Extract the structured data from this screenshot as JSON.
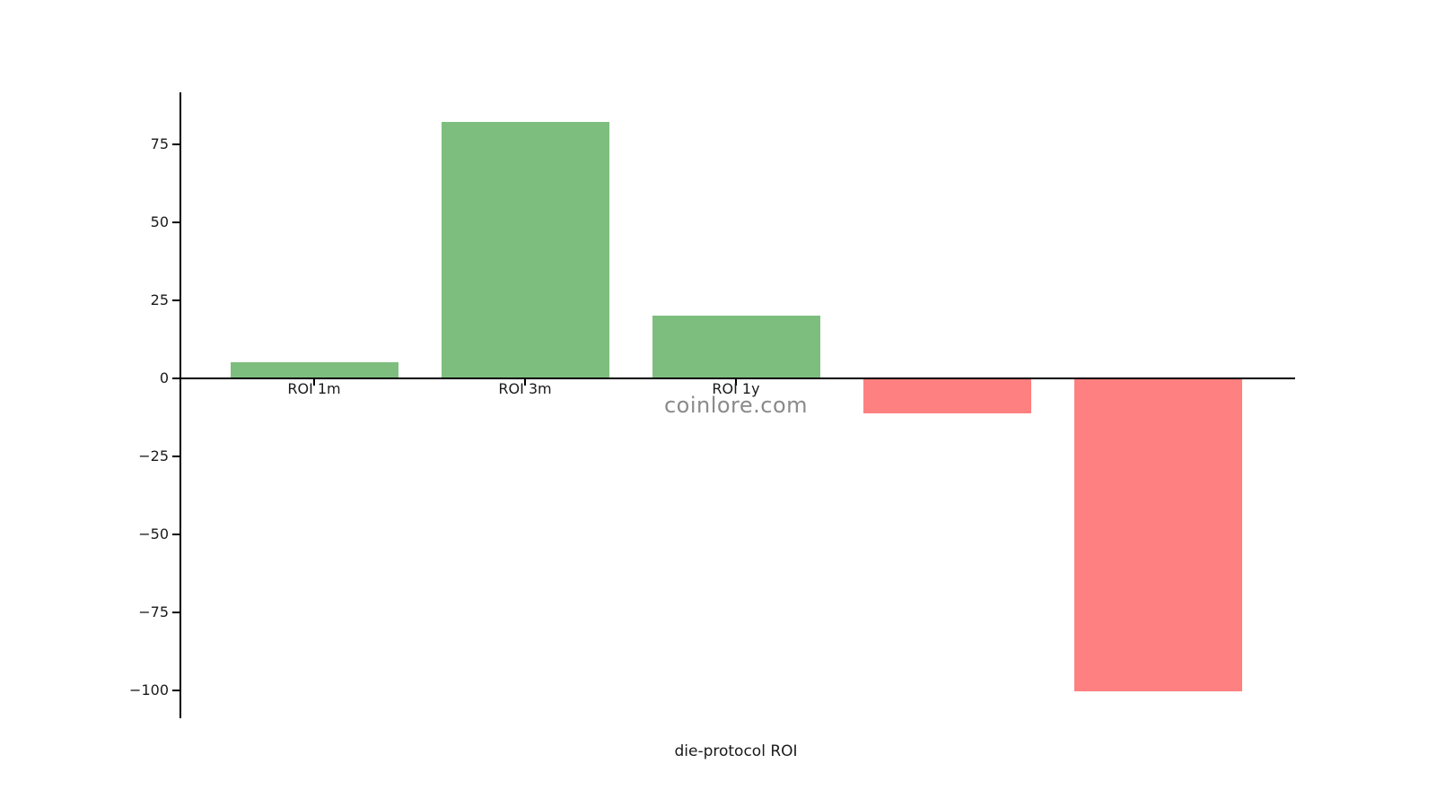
{
  "chart_data": {
    "type": "bar",
    "categories": [
      "ROI 1m",
      "ROI 3m",
      "ROI 1y",
      "",
      ""
    ],
    "values": [
      5,
      82,
      20,
      -11,
      -100
    ],
    "title": "",
    "xlabel": "die-protocol ROI",
    "ylabel": "",
    "ytick_values": [
      75,
      50,
      25,
      0,
      -25,
      -50,
      -75,
      -100
    ],
    "ytick_labels": [
      "75",
      "50",
      "25",
      "0",
      "−25",
      "−50",
      "−75",
      "−100"
    ],
    "ylim": [
      -109,
      91.5
    ],
    "grid": false,
    "legend": false,
    "bar_color_positive": "#7dbe7e",
    "bar_color_negative": "#ff8080",
    "axis_color": "#000000"
  },
  "watermark": {
    "text": "coinlore.com",
    "color": "#8a8a8a"
  }
}
